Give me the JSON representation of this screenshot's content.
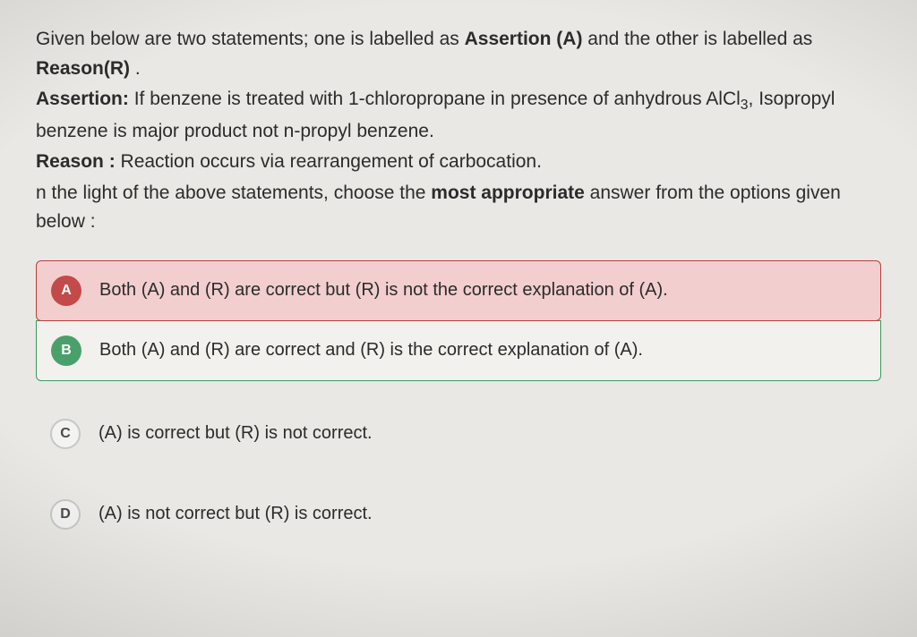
{
  "background_color": "#e9e8e4",
  "text_color": "#2b2b2b",
  "intro": {
    "line1_pre": "Given below are two statements; one is labelled as ",
    "assertion_label": "Assertion (A)",
    "line1_mid": " and the other is labelled as ",
    "reason_label": "Reason(R)",
    "line1_post": " ."
  },
  "assertion": {
    "label": "Assertion:",
    "text_pre": " If benzene is treated with 1-chloropropane in presence of anhydrous AlCl",
    "sub": "3",
    "text_post": ", Isopropyl benzene is major product not n-propyl benzene."
  },
  "reason": {
    "label": "Reason :",
    "text": " Reaction occurs via rearrangement of carbocation."
  },
  "prompt": {
    "pre": "n the light of the above statements, choose the ",
    "bold": "most appropriate",
    "post": " answer from the options given below :"
  },
  "options": {
    "a": {
      "letter": "A",
      "text": "Both (A) and (R) are correct but (R) is not the correct explanation of (A)."
    },
    "b": {
      "letter": "B",
      "text": "Both (A) and (R) are correct and (R) is the correct explanation of (A)."
    },
    "c": {
      "letter": "C",
      "text": "(A) is correct but (R) is not correct."
    },
    "d": {
      "letter": "D",
      "text": "(A) is not correct but (R) is correct."
    }
  },
  "styles": {
    "opt_a": {
      "bg": "#f2cfce",
      "border": "#b83f3e",
      "letter_bg": "#c24a49"
    },
    "opt_b": {
      "bg": "#f2f1ed",
      "border": "#3f9a63",
      "letter_bg": "#4aa06a"
    },
    "plain_letter_bg": "#f3f3f1",
    "plain_letter_border": "#c7c7c3"
  }
}
